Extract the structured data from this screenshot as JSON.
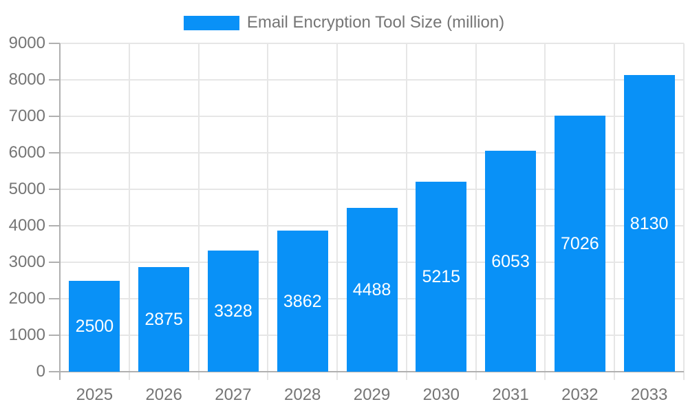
{
  "chart_data": {
    "type": "bar",
    "title": "Email Encryption Tool Size (million)",
    "categories": [
      "2025",
      "2026",
      "2027",
      "2028",
      "2029",
      "2030",
      "2031",
      "2032",
      "2033"
    ],
    "values": [
      2500,
      2875,
      3328,
      3862,
      4488,
      5215,
      6053,
      7026,
      8130
    ],
    "xlabel": "",
    "ylabel": "",
    "ylim": [
      0,
      9000
    ],
    "ytick_step": 1000,
    "grid": true,
    "legend_position": "top",
    "value_labels_inside_bars": true,
    "colors": {
      "bar": "#0991f7",
      "bar_value_text": "#ffffff",
      "axis_text": "#757575",
      "axis_line": "#b0b0b0",
      "gridline": "#e6e6e6",
      "background": "#ffffff"
    }
  }
}
